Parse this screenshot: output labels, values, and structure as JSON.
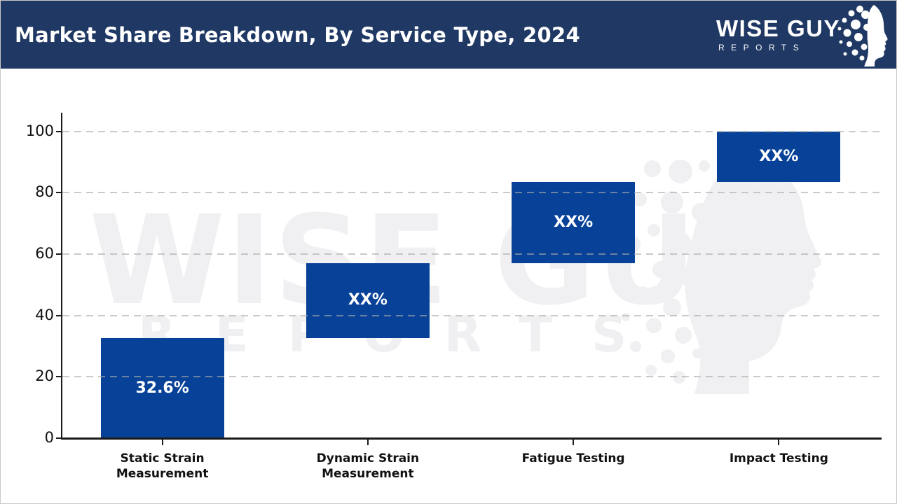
{
  "header": {
    "title": "Market Share Breakdown, By Service Type, 2024",
    "bg_color": "#1f3864",
    "logo": {
      "line1": "WISE GUY",
      "line2": "REPORTS"
    }
  },
  "watermark": {
    "line1": "WISE GUY",
    "line2": "REPORTS"
  },
  "chart_data": {
    "type": "bar",
    "subtype": "waterfall-floating-segments",
    "title": "Market Share Breakdown, By Service Type, 2024",
    "categories": [
      "Static Strain Measurement",
      "Dynamic Strain Measurement",
      "Fatigue Testing",
      "Impact Testing"
    ],
    "segments": [
      {
        "start": 0,
        "end": 32.6,
        "label": "32.6%"
      },
      {
        "start": 32.6,
        "end": 57.1,
        "label": "XX%"
      },
      {
        "start": 57.1,
        "end": 83.4,
        "label": "XX%"
      },
      {
        "start": 83.4,
        "end": 100,
        "label": "XX%"
      }
    ],
    "ylim": [
      0,
      100
    ],
    "yticks": [
      "0",
      "20",
      "40",
      "60",
      "80",
      "100"
    ],
    "grid": "horizontal-dashed",
    "legend": "none",
    "xlabel": "",
    "ylabel": "",
    "bar_color": "#084298",
    "bar_label_color": "#ffffff",
    "axis_color": "#1a1a1a",
    "gridline_color": "#c8c8c8",
    "watermark_color": "#f0f0f3"
  }
}
